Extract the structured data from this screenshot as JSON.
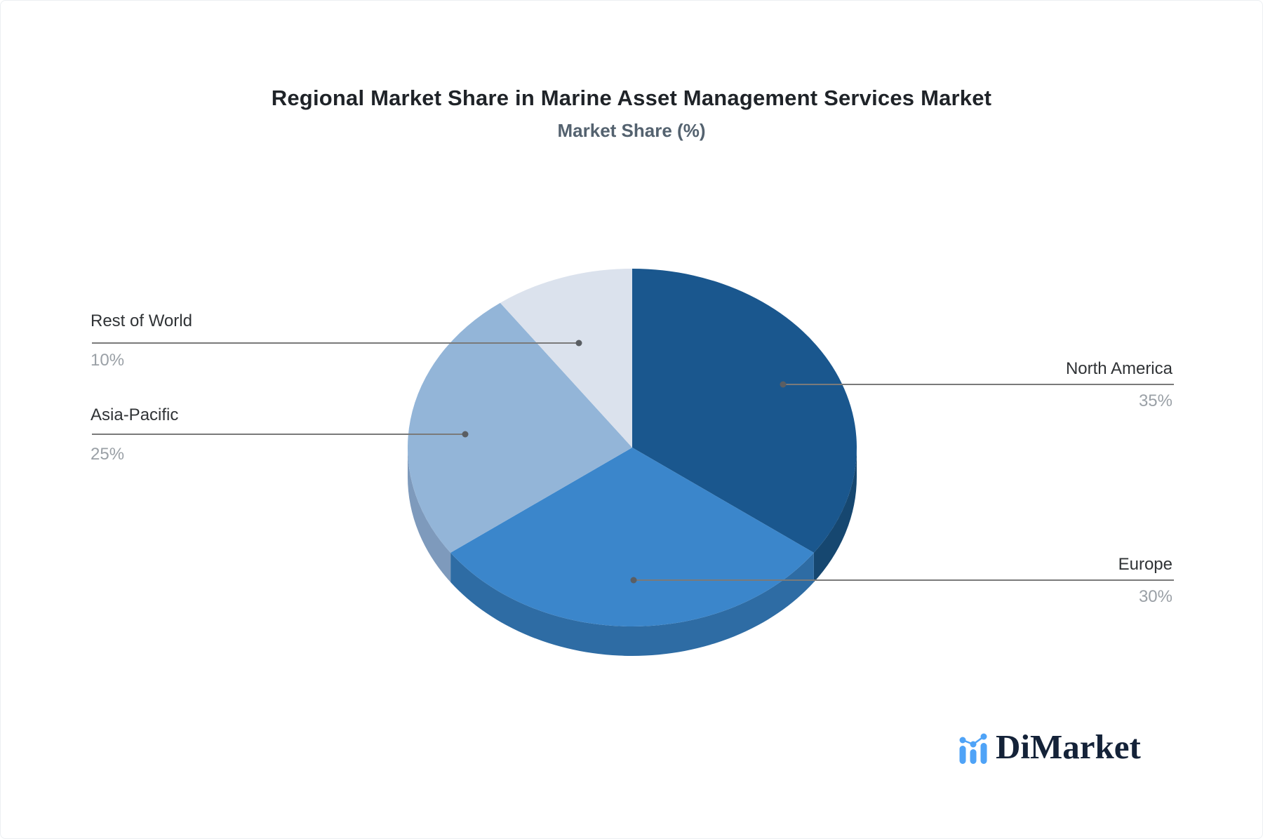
{
  "title": "Regional Market Share in Marine Asset Management Services Market",
  "subtitle": "Market Share (%)",
  "chart_data": {
    "type": "pie",
    "title": "Regional Market Share in Marine Asset Management Services Market",
    "subtitle": "Market Share (%)",
    "unit": "%",
    "categories": [
      "North America",
      "Europe",
      "Asia-Pacific",
      "Rest of World"
    ],
    "values": [
      35,
      30,
      25,
      10
    ],
    "labels": [
      "35%",
      "30%",
      "25%",
      "10%"
    ],
    "colors": [
      "#1a578e",
      "#3b86cb",
      "#93b5d8",
      "#dbe2ed"
    ],
    "side_colors": [
      "#164770",
      "#2e6ca4",
      "#7e9abc",
      "#b9c4d4"
    ],
    "start_angle_deg": -90,
    "direction": "clockwise",
    "style": "3d-pie",
    "legend": "none",
    "callout_line_color": "#7a7a7a",
    "callout_dot_color": "#5a5e63"
  },
  "logo": {
    "text": "DiMarket",
    "icon": "bar-chart-trend-icon",
    "icon_color": "#4fa3f7",
    "text_color": "#142238"
  }
}
